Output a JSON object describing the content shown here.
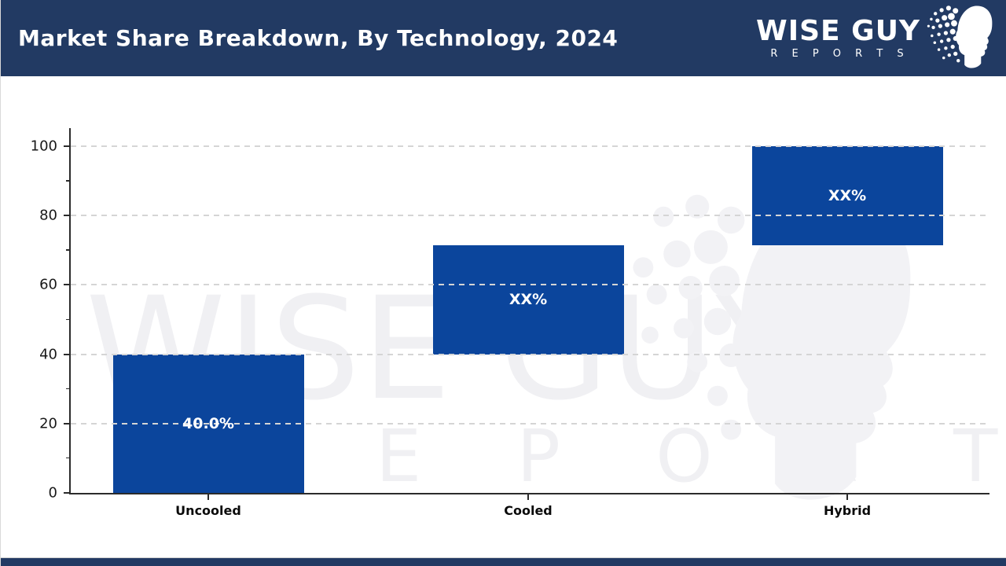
{
  "header": {
    "title": "Market Share Breakdown, By Technology, 2024",
    "brand": {
      "name": "WISE GUY",
      "sub": "R E P O R T S"
    }
  },
  "watermark": {
    "line1": "WISE GUY",
    "line2": "R E P O R T S"
  },
  "chart_data": {
    "type": "bar",
    "variant": "waterfall",
    "title": "Market Share Breakdown, By Technology, 2024",
    "categories": [
      "Uncooled",
      "Cooled",
      "Hybrid"
    ],
    "segments": [
      {
        "category": "Uncooled",
        "start": 0,
        "end": 40,
        "label": "40.0%"
      },
      {
        "category": "Cooled",
        "start": 40,
        "end": 71.5,
        "label": "XX%"
      },
      {
        "category": "Hybrid",
        "start": 71.5,
        "end": 100,
        "label": "XX%"
      }
    ],
    "yticks": [
      0,
      20,
      40,
      60,
      80,
      100
    ],
    "minor_yticks": [
      10,
      30,
      50,
      70,
      90
    ],
    "ylim": [
      0,
      105
    ],
    "xlabel": "",
    "ylabel": "",
    "legend": "none",
    "grid": "horizontal-dashed",
    "bar_color": "#0b459c",
    "bar_label_color": "#ffffff"
  },
  "colors": {
    "header_bg": "#223a63",
    "footer_bg": "#223a63",
    "bar": "#0b459c",
    "grid": "#d5d5d5",
    "axis": "#2b2b2b",
    "watermark": "#f0f0f3"
  }
}
